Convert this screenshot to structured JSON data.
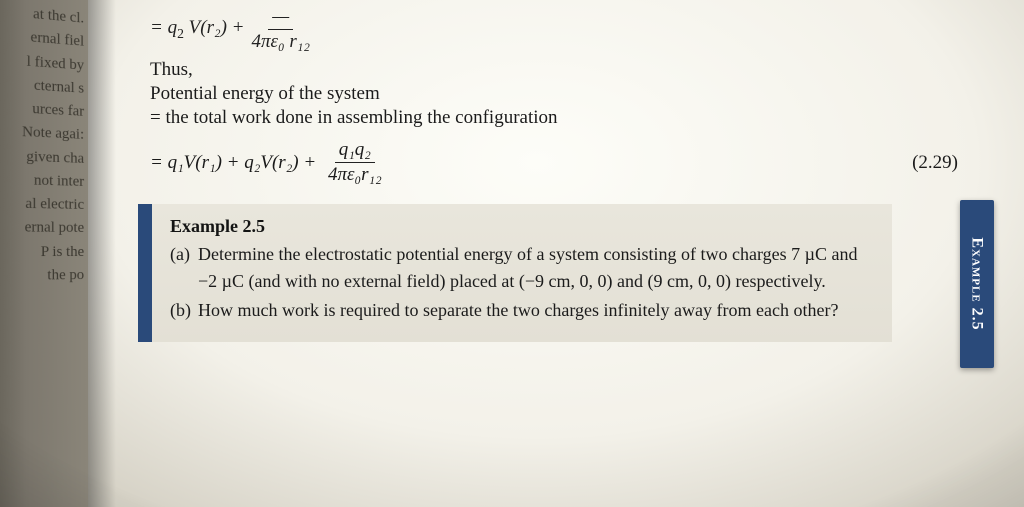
{
  "prev_page_fragments": [
    "at the cl.",
    "ernal fiel",
    "l fixed by",
    "cternal s",
    "urces far",
    "Note agai:",
    "given cha",
    "not inter",
    "al electric",
    "ernal pote",
    "P is the",
    "the po"
  ],
  "top_formula_prefix": "= q",
  "top_formula_rest": "V(r₂) +",
  "frac_top_num": "—",
  "frac_top_den": "4πε₀ r₁₂",
  "thus": "Thus,",
  "pe_line1": "Potential energy of the system",
  "pe_line2": "= the total work done in assembling the configuration",
  "eq_prefix": "= q₁V(r₁) + q₂V(r₂) +",
  "eq_frac_num": "q₁q₂",
  "eq_frac_den": "4πε₀r₁₂",
  "eq_number": "(2.29)",
  "example": {
    "title": "Example 2.5",
    "a_label": "(a)",
    "a_text": "Determine the electrostatic potential energy of a system consisting of two charges 7 µC and −2 µC (and with no external field) placed at (−9 cm, 0, 0) and (9 cm, 0, 0) respectively.",
    "b_label": "(b)",
    "b_text": "How much work is required to separate the two charges infinitely away from each other?"
  },
  "side_tab": "Example 2.5",
  "colors": {
    "accent": "#2a4a7a",
    "paper": "#fdfdf8",
    "example_bg": "#e9e6dc",
    "text": "#1a1a1a"
  }
}
